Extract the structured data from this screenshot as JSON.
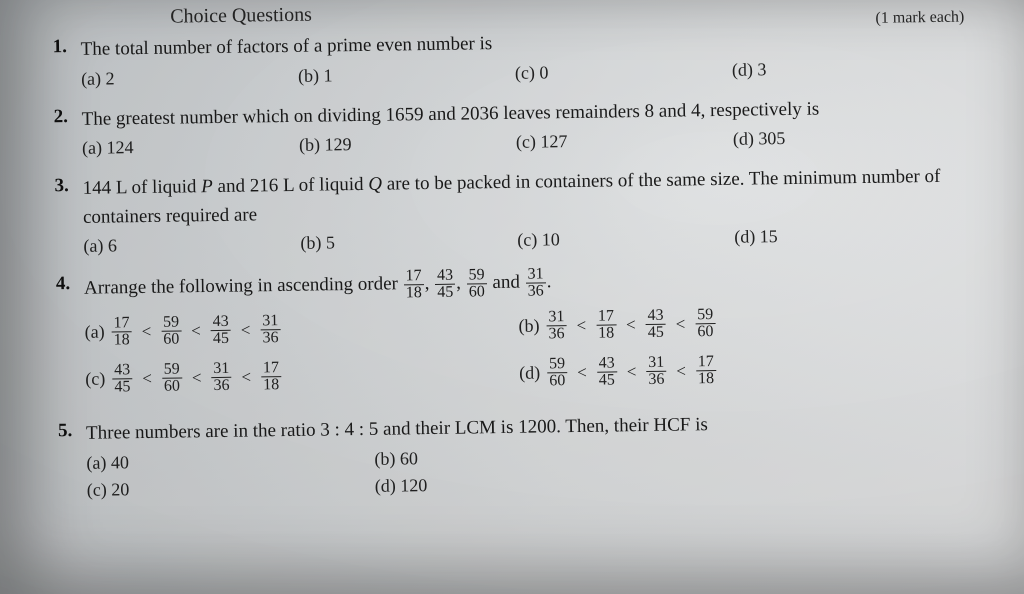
{
  "header_partial": "Choice Questions",
  "mark_note": "(1 mark each)",
  "q1": {
    "num": "1.",
    "text": "The total number of factors of a prime even number is",
    "a": "(a) 2",
    "b": "(b) 1",
    "c": "(c) 0",
    "d": "(d) 3"
  },
  "q2": {
    "num": "2.",
    "text": "The greatest number which on dividing 1659 and 2036 leaves remainders 8 and 4, respectively is",
    "a": "(a) 124",
    "b": "(b) 129",
    "c": "(c) 127",
    "d": "(d) 305"
  },
  "q3": {
    "num": "3.",
    "text_pre": "144 L of liquid ",
    "P": "P",
    "text_mid": " and 216 L of liquid ",
    "Q": "Q",
    "text_post": " are to be packed in containers of the same size. The minimum number of containers required are",
    "a": "(a) 6",
    "b": "(b) 5",
    "c": "(c) 10",
    "d": "(d) 15"
  },
  "q4": {
    "num": "4.",
    "text_pre": "Arrange the following in ascending order ",
    "f1n": "17",
    "f1d": "18",
    "f2n": "43",
    "f2d": "45",
    "f3n": "59",
    "f3d": "60",
    "and": " and ",
    "f4n": "31",
    "f4d": "36",
    "period": ".",
    "a_label": "(a)",
    "a": {
      "n": [
        "17",
        "59",
        "43",
        "31"
      ],
      "d": [
        "18",
        "60",
        "45",
        "36"
      ]
    },
    "b_label": "(b)",
    "b": {
      "n": [
        "31",
        "17",
        "43",
        "59"
      ],
      "d": [
        "36",
        "18",
        "45",
        "60"
      ]
    },
    "c_label": "(c)",
    "c": {
      "n": [
        "43",
        "59",
        "31",
        "17"
      ],
      "d": [
        "45",
        "60",
        "36",
        "18"
      ]
    },
    "d_label": "(d)",
    "d": {
      "n": [
        "59",
        "43",
        "31",
        "17"
      ],
      "d": [
        "60",
        "45",
        "36",
        "18"
      ]
    }
  },
  "q5": {
    "num": "5.",
    "text": "Three numbers are in the ratio 3 : 4 : 5 and their LCM is 1200. Then, their HCF is",
    "a": "(a) 40",
    "b": "(b) 60",
    "c": "(c) 20",
    "d": "(d) 120"
  },
  "lt": "<",
  "comma": ","
}
